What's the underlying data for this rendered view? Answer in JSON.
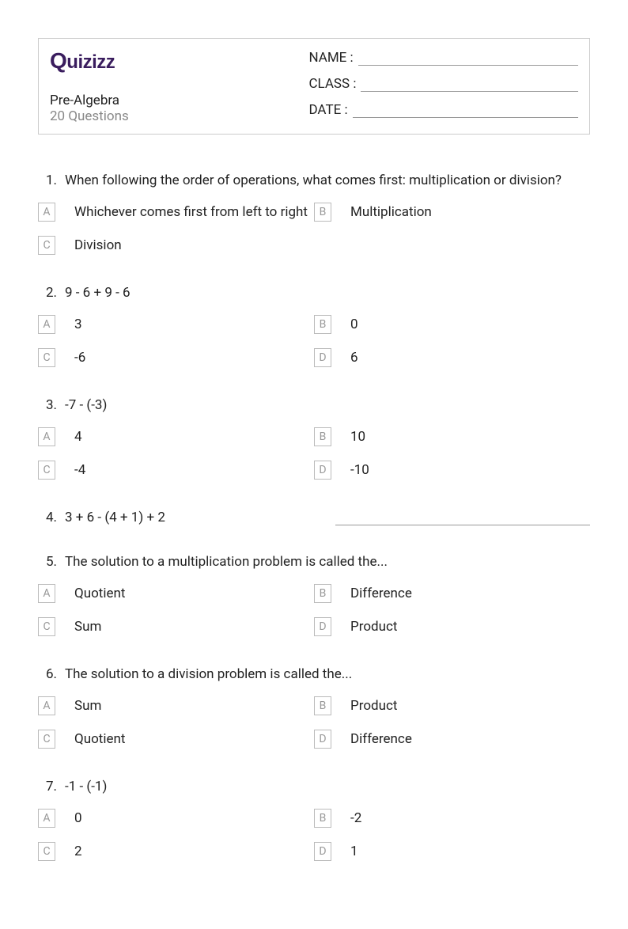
{
  "logo_text": "Quizizz",
  "quiz": {
    "title": "Pre-Algebra",
    "subtitle": "20 Questions"
  },
  "fields": {
    "name": "NAME :",
    "class": "CLASS :",
    "date": "DATE  :"
  },
  "questions": [
    {
      "num": "1.",
      "text": "When following the order of operations, what comes first: multiplication or division?",
      "answers": [
        {
          "letter": "A",
          "text": "Whichever comes first from left to right"
        },
        {
          "letter": "B",
          "text": "Multiplication"
        },
        {
          "letter": "C",
          "text": "Division"
        }
      ]
    },
    {
      "num": "2.",
      "text": "9 - 6 + 9 - 6",
      "answers": [
        {
          "letter": "A",
          "text": "3"
        },
        {
          "letter": "B",
          "text": "0"
        },
        {
          "letter": "C",
          "text": "-6"
        },
        {
          "letter": "D",
          "text": "6"
        }
      ]
    },
    {
      "num": "3.",
      "text": "-7 - (-3)",
      "answers": [
        {
          "letter": "A",
          "text": "4"
        },
        {
          "letter": "B",
          "text": "10"
        },
        {
          "letter": "C",
          "text": "-4"
        },
        {
          "letter": "D",
          "text": "-10"
        }
      ]
    },
    {
      "num": "4.",
      "text": "3 + 6 - (4 + 1) + 2",
      "open": true
    },
    {
      "num": "5.",
      "text": "The solution to a multiplication problem is called the...",
      "answers": [
        {
          "letter": "A",
          "text": "Quotient"
        },
        {
          "letter": "B",
          "text": "Difference"
        },
        {
          "letter": "C",
          "text": "Sum"
        },
        {
          "letter": "D",
          "text": "Product"
        }
      ]
    },
    {
      "num": "6.",
      "text": "The solution to a division problem is called the...",
      "answers": [
        {
          "letter": "A",
          "text": "Sum"
        },
        {
          "letter": "B",
          "text": "Product"
        },
        {
          "letter": "C",
          "text": "Quotient"
        },
        {
          "letter": "D",
          "text": "Difference"
        }
      ]
    },
    {
      "num": "7.",
      "text": "-1 - (-1)",
      "answers": [
        {
          "letter": "A",
          "text": "0"
        },
        {
          "letter": "B",
          "text": "-2"
        },
        {
          "letter": "C",
          "text": "2"
        },
        {
          "letter": "D",
          "text": "1"
        }
      ]
    }
  ]
}
